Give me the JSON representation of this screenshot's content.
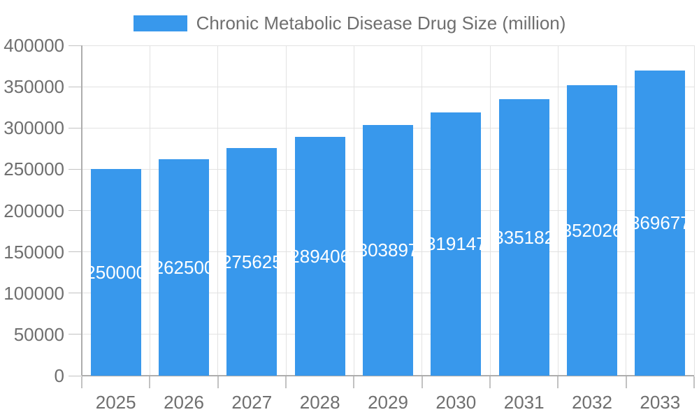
{
  "chart_data": {
    "type": "bar",
    "title": "Chronic Metabolic Disease Drug Size (million)",
    "legend": [
      {
        "label": "Chronic Metabolic Disease Drug Size (million)",
        "color": "#3898ec"
      }
    ],
    "legend_position": "top-center",
    "categories": [
      "2025",
      "2026",
      "2027",
      "2028",
      "2029",
      "2030",
      "2031",
      "2032",
      "2033"
    ],
    "series": [
      {
        "name": "Chronic Metabolic Disease Drug Size (million)",
        "color": "#3898ec",
        "values": [
          250000,
          262500,
          275625,
          289406,
          303897,
          319147,
          335182,
          352026,
          369677
        ]
      }
    ],
    "bar_value_labels": [
      "250000",
      "262500",
      "275625",
      "289406",
      "303897",
      "319147",
      "335182",
      "352026",
      "369677"
    ],
    "xlabel": "",
    "ylabel": "",
    "ylim": [
      0,
      400000
    ],
    "yticks": [
      0,
      50000,
      100000,
      150000,
      200000,
      250000,
      300000,
      350000,
      400000
    ],
    "grid": "horizontal-and-vertical",
    "value_label_color": "#ffffff"
  },
  "colors": {
    "bar": "#3898ec",
    "gridline": "#e2e2e2",
    "axis_line": "#adadad",
    "tick_mark": "#c2c2c2",
    "text": "#6f6f6f",
    "background": "#ffffff"
  }
}
